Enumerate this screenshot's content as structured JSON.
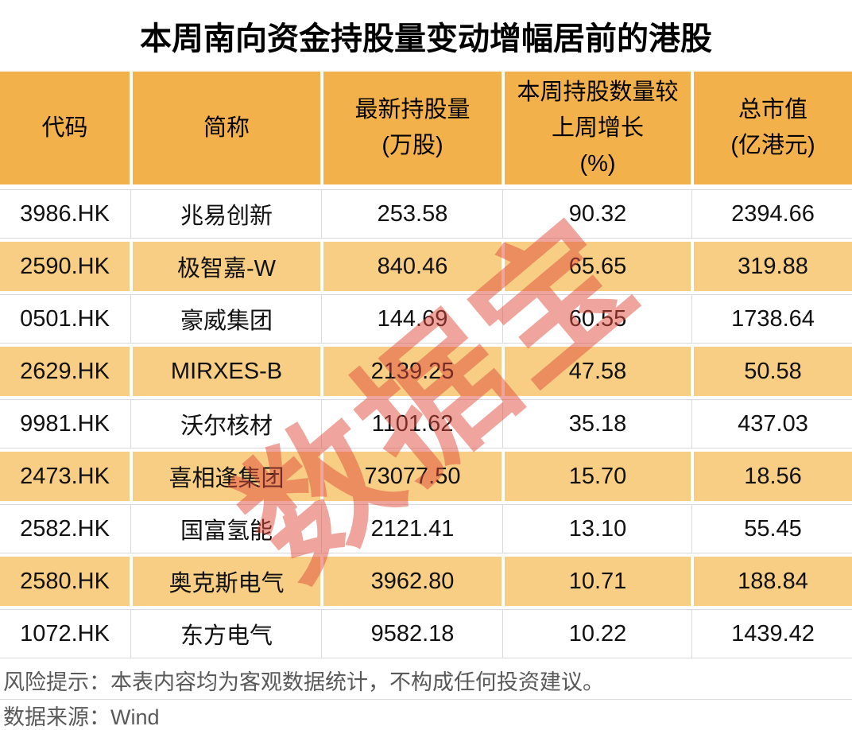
{
  "title": "本周南向资金持股量变动增幅居前的港股",
  "watermark": {
    "text": "数据宝"
  },
  "table": {
    "headers": [
      {
        "lines": [
          "代码"
        ]
      },
      {
        "lines": [
          "简称"
        ]
      },
      {
        "lines": [
          "最新持股量",
          "(万股)"
        ]
      },
      {
        "lines": [
          "本周持股数量较",
          "上周增长",
          "(%)"
        ]
      },
      {
        "lines": [
          "总市值",
          "(亿港元)"
        ]
      }
    ],
    "rows": [
      {
        "code": "3986.HK",
        "name": "兆易创新",
        "holding": "253.58",
        "growth": "90.32",
        "cap": "2394.66"
      },
      {
        "code": "2590.HK",
        "name": "极智嘉-W",
        "holding": "840.46",
        "growth": "65.65",
        "cap": "319.88"
      },
      {
        "code": "0501.HK",
        "name": "豪威集团",
        "holding": "144.69",
        "growth": "60.55",
        "cap": "1738.64"
      },
      {
        "code": "2629.HK",
        "name": "MIRXES-B",
        "holding": "2139.25",
        "growth": "47.58",
        "cap": "50.58"
      },
      {
        "code": "9981.HK",
        "name": "沃尔核材",
        "holding": "1101.62",
        "growth": "35.18",
        "cap": "437.03"
      },
      {
        "code": "2473.HK",
        "name": "喜相逢集团",
        "holding": "73077.50",
        "growth": "15.70",
        "cap": "18.56"
      },
      {
        "code": "2582.HK",
        "name": "国富氢能",
        "holding": "2121.41",
        "growth": "13.10",
        "cap": "55.45"
      },
      {
        "code": "2580.HK",
        "name": "奥克斯电气",
        "holding": "3962.80",
        "growth": "10.71",
        "cap": "188.84"
      },
      {
        "code": "1072.HK",
        "name": "东方电气",
        "holding": "9582.18",
        "growth": "10.22",
        "cap": "1439.42"
      }
    ]
  },
  "footer": {
    "risk_note": "风险提示：本表内容均为客观数据统计，不构成任何投资建议。",
    "source": "数据来源：Wind"
  },
  "colors": {
    "header_bg": "#F3B14C",
    "alt_row_bg": "#F8CE85",
    "hairline": "#D9D9D9",
    "watermark": "rgba(223,76,60,0.5)",
    "footer_text": "#595959"
  },
  "chart_data": {
    "type": "table",
    "title": "本周南向资金持股量变动增幅居前的港股",
    "columns": [
      "代码",
      "简称",
      "最新持股量(万股)",
      "本周持股数量较上周增长(%)",
      "总市值(亿港元)"
    ],
    "rows": [
      [
        "3986.HK",
        "兆易创新",
        253.58,
        90.32,
        2394.66
      ],
      [
        "2590.HK",
        "极智嘉-W",
        840.46,
        65.65,
        319.88
      ],
      [
        "0501.HK",
        "豪威集团",
        144.69,
        60.55,
        1738.64
      ],
      [
        "2629.HK",
        "MIRXES-B",
        2139.25,
        47.58,
        50.58
      ],
      [
        "9981.HK",
        "沃尔核材",
        1101.62,
        35.18,
        437.03
      ],
      [
        "2473.HK",
        "喜相逢集团",
        73077.5,
        15.7,
        18.56
      ],
      [
        "2582.HK",
        "国富氢能",
        2121.41,
        13.1,
        55.45
      ],
      [
        "2580.HK",
        "奥克斯电气",
        3962.8,
        10.71,
        188.84
      ],
      [
        "1072.HK",
        "东方电气",
        9582.18,
        10.22,
        1439.42
      ]
    ],
    "source": "Wind",
    "watermark": "数据宝"
  }
}
